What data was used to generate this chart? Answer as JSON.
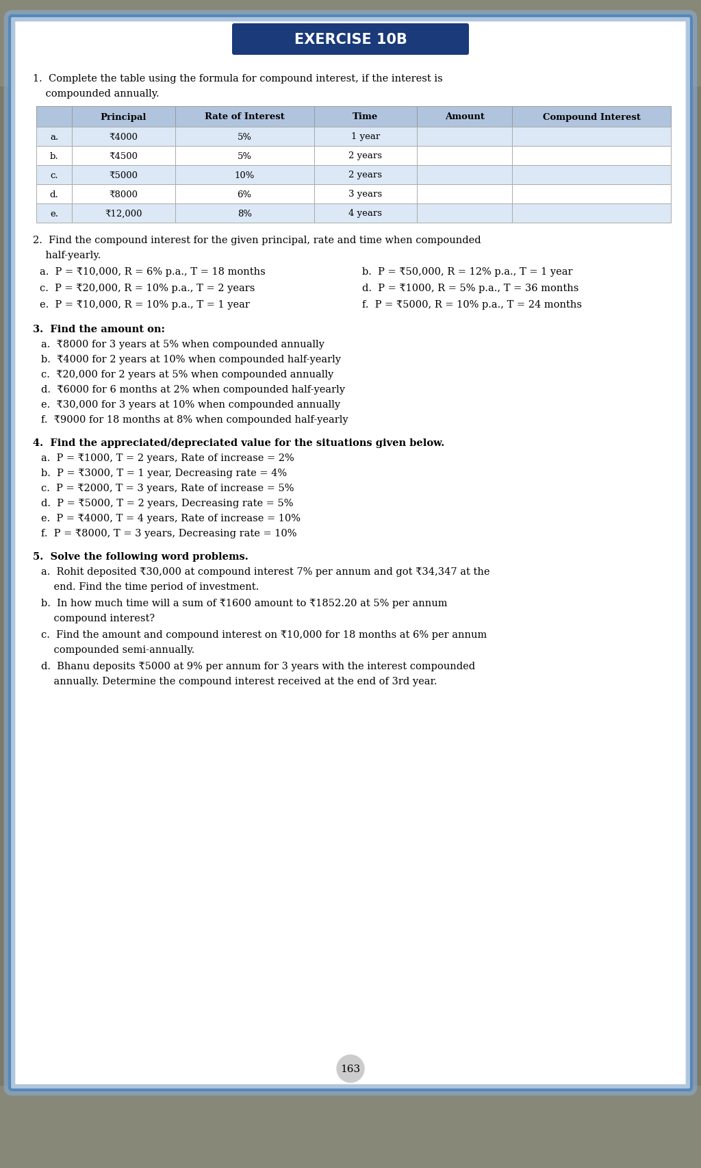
{
  "title": "EXERCISE 10B",
  "title_bg": "#1a3a7a",
  "title_color": "white",
  "outer_bg": "#7a7a6a",
  "page_bg": "white",
  "border_color": "#5588bb",
  "q1_text_pre": "1.  Complete the table using the formula for compound interest, if the interest is",
  "q1_text_post": "    compounded annually.",
  "table_headers": [
    "",
    "Principal",
    "Rate of Interest",
    "Time",
    "Amount",
    "Compound Interest"
  ],
  "table_rows": [
    [
      "a.",
      "₹4000",
      "5%",
      "1 year",
      "",
      ""
    ],
    [
      "b.",
      "₹4500",
      "5%",
      "2 years",
      "",
      ""
    ],
    [
      "c.",
      "₹5000",
      "10%",
      "2 years",
      "",
      ""
    ],
    [
      "d.",
      "₹8000",
      "6%",
      "3 years",
      "",
      ""
    ],
    [
      "e.",
      "₹12,000",
      "8%",
      "4 years",
      "",
      ""
    ]
  ],
  "table_header_bg": "#b0c4de",
  "table_alt_bg": "#dce8f5",
  "q2_heading_bold": "2.  Find the compound interest for the given principal, rate and time when compounded",
  "q2_heading_normal": "    half-yearly.",
  "q2_items_col1": [
    "a.  P = ₹10,000, R = 6% p.a., T = 18 months",
    "c.  P = ₹20,000, R = 10% p.a., T = 2 years",
    "e.  P = ₹10,000, R = 10% p.a., T = 1 year"
  ],
  "q2_items_col2": [
    "b.  P = ₹50,000, R = 12% p.a., T = 1 year",
    "d.  P = ₹1000, R = 5% p.a., T = 36 months",
    "f.  P = ₹5000, R = 10% p.a., T = 24 months"
  ],
  "q3_heading": "3.  Find the amount on:",
  "q3_items": [
    "a.  ₹8000 for 3 years at 5% when compounded annually",
    "b.  ₹4000 for 2 years at 10% when compounded half-yearly",
    "c.  ₹20,000 for 2 years at 5% when compounded annually",
    "d.  ₹6000 for 6 months at 2% when compounded half-yearly",
    "e.  ₹30,000 for 3 years at 10% when compounded annually",
    "f.  ₹9000 for 18 months at 8% when compounded half-yearly"
  ],
  "q4_heading": "4.  Find the appreciated/depreciated value for the situations given below.",
  "q4_items": [
    "a.  P = ₹1000, T = 2 years, Rate of increase = 2%",
    "b.  P = ₹3000, T = 1 year, Decreasing rate = 4%",
    "c.  P = ₹2000, T = 3 years, Rate of increase = 5%",
    "d.  P = ₹5000, T = 2 years, Decreasing rate = 5%",
    "e.  P = ₹4000, T = 4 years, Rate of increase = 10%",
    "f.  P = ₹8000, T = 3 years, Decreasing rate = 10%"
  ],
  "q5_heading": "5.  Solve the following word problems.",
  "q5_items": [
    [
      "a.  Rohit deposited ₹30,000 at compound interest 7% per annum and got ₹34,347 at the",
      "    end. Find the time period of investment."
    ],
    [
      "b.  In how much time will a sum of ₹1600 amount to ₹1852.20 at 5% per annum",
      "    compound interest?"
    ],
    [
      "c.  Find the amount and compound interest on ₹10,000 for 18 months at 6% per annum",
      "    compounded semi-annually."
    ],
    [
      "d.  Bhanu deposits ₹5000 at 9% per annum for 3 years with the interest compounded",
      "    annually. Determine the compound interest received at the end of 3rd year."
    ]
  ],
  "page_number": "163"
}
